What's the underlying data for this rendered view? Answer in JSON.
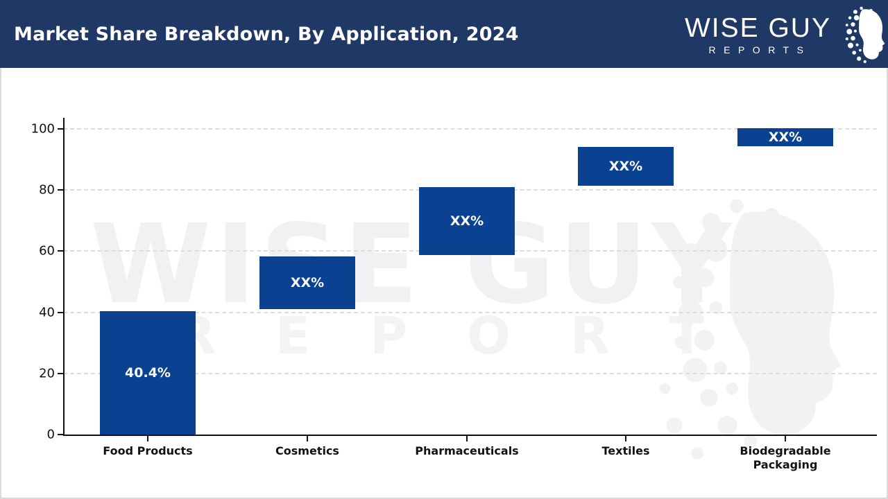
{
  "header": {
    "title": "Market Share Breakdown, By Application, 2024",
    "logo": {
      "name": "WISE GUY",
      "sub": "REPORTS"
    }
  },
  "watermark": {
    "line1": "WISE GUY",
    "line2": "R E P O R T S"
  },
  "colors": {
    "header_bg": "#203865",
    "bar": "#0a4190",
    "grid": "#dcdcdc",
    "axis": "#111111",
    "value_label": "#ffffff",
    "watermark": "#f1f1f4"
  },
  "chart_data": {
    "type": "bar",
    "subtype": "floating-segment-waterfall",
    "title": "Market Share Breakdown, By Application, 2024",
    "xlabel": "",
    "ylabel": "",
    "categories": [
      "Food Products",
      "Cosmetics",
      "Pharmaceuticals",
      "Textiles",
      "Biodegradable Packaging"
    ],
    "segments": [
      {
        "category": "Food Products",
        "from": 0,
        "to": 40.4,
        "label": "40.4%"
      },
      {
        "category": "Cosmetics",
        "from": 41,
        "to": 58.3,
        "label": "XX%"
      },
      {
        "category": "Pharmaceuticals",
        "from": 58.8,
        "to": 81,
        "label": "XX%"
      },
      {
        "category": "Textiles",
        "from": 81.3,
        "to": 94,
        "label": "XX%"
      },
      {
        "category": "Biodegradable Packaging",
        "from": 94.3,
        "to": 100.3,
        "label": "XX%"
      }
    ],
    "yticks": [
      0,
      20,
      40,
      60,
      80,
      100
    ],
    "ylim": [
      0,
      103.6
    ],
    "grid": "horizontal-dashed",
    "legend": "none"
  }
}
